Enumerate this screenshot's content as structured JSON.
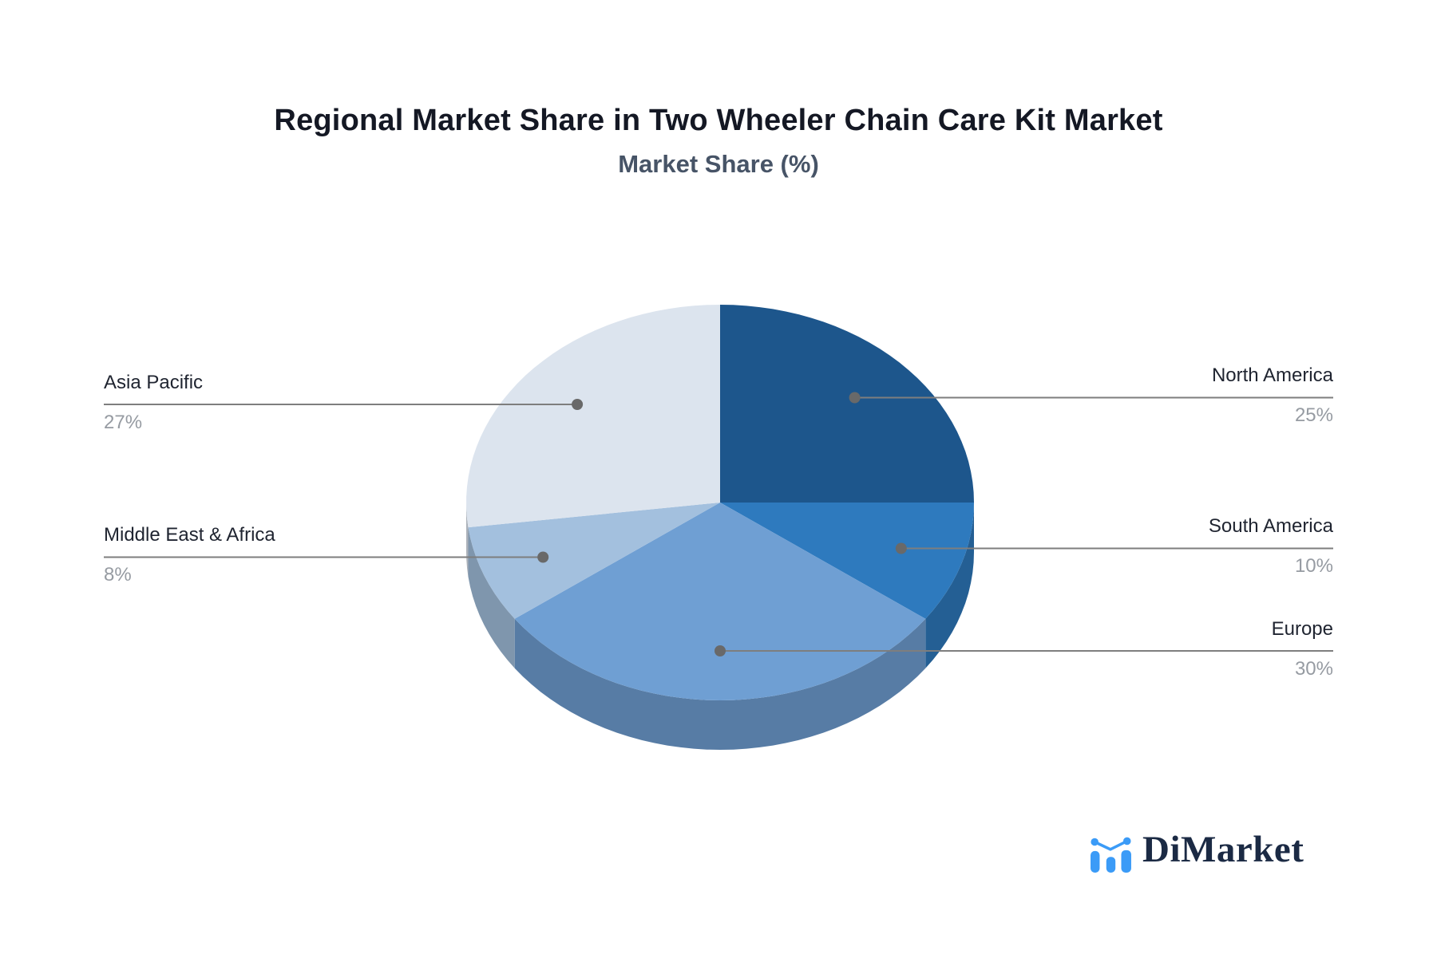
{
  "header": {
    "title": "Regional Market Share in Two Wheeler Chain Care Kit Market",
    "subtitle": "Market Share (%)"
  },
  "chart_data": {
    "type": "pie",
    "style": "3d-pie",
    "title": "Regional Market Share in Two Wheeler Chain Care Kit Market",
    "subtitle": "Market Share (%)",
    "unit": "%",
    "direction": "clockwise",
    "start_angle": "12-o-clock",
    "legend_position": "callout-labels",
    "slices": [
      {
        "label": "North America",
        "value": 25,
        "percent_label": "25%",
        "color": "#1d568c",
        "callout_side": "right"
      },
      {
        "label": "South America",
        "value": 10,
        "percent_label": "10%",
        "color": "#2e7abe",
        "callout_side": "right"
      },
      {
        "label": "Europe",
        "value": 30,
        "percent_label": "30%",
        "color": "#6f9fd3",
        "callout_side": "right"
      },
      {
        "label": "Middle East & Africa",
        "value": 8,
        "percent_label": "8%",
        "color": "#a3c0de",
        "callout_side": "left"
      },
      {
        "label": "Asia Pacific",
        "value": 27,
        "percent_label": "27%",
        "color": "#dce4ee",
        "callout_side": "left"
      }
    ],
    "callout_line_color": "#7e7e7e",
    "callout_dot_color": "#696969",
    "label_color": "#1f2430",
    "percent_color": "#969ba2"
  },
  "branding": {
    "logo_text": "DiMarket",
    "logo_icon": "bar-chart-trend-icon",
    "logo_text_color": "#1b2a44",
    "logo_accent_color": "#3b9bf7"
  },
  "colors": {
    "background": "#ffffff",
    "title": "#141824",
    "subtitle": "#475467"
  }
}
